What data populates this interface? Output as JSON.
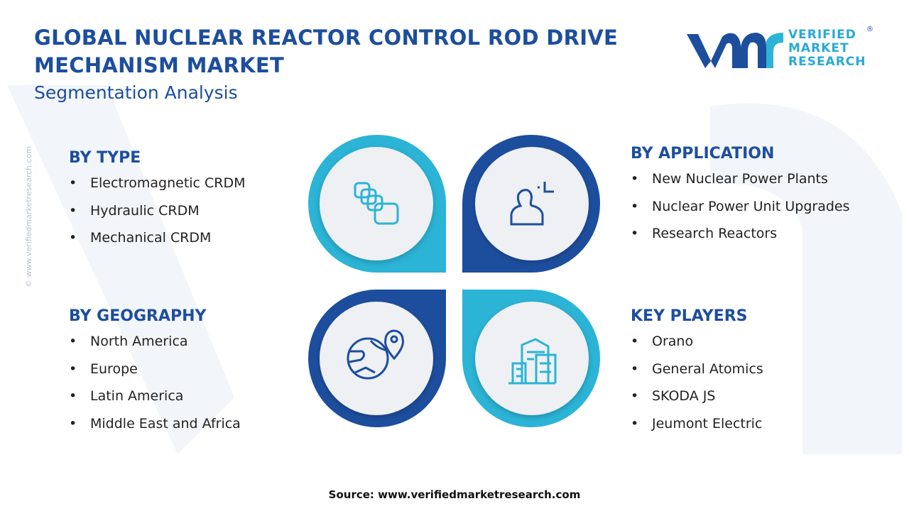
{
  "header": {
    "title_lines": [
      "GLOBAL NUCLEAR REACTOR CONTROL ROD DRIVE",
      "MECHANISM MARKET"
    ],
    "subtitle": "Segmentation Analysis"
  },
  "logo": {
    "lines": [
      "VERIFIED",
      "MARKET",
      "RESEARCH"
    ],
    "mark": "®"
  },
  "side_text": "© www.verifiedmarketresearch.com",
  "segments": [
    {
      "heading": "BY TYPE",
      "items": [
        "Electromagnetic CRDM",
        "Hydraulic CRDM",
        "Mechanical CRDM"
      ]
    },
    {
      "heading": "BY APPLICATION",
      "items": [
        "New Nuclear Power Plants",
        "Nuclear Power Unit Upgrades",
        "Research Reactors"
      ]
    },
    {
      "heading": "BY GEOGRAPHY",
      "items": [
        "North America",
        "Europe",
        "Latin America",
        "Middle East and Africa"
      ]
    },
    {
      "heading": "KEY PLAYERS",
      "items": [
        "Orano",
        "General Atomics",
        "SKODA JS",
        "Jeumont Electric"
      ]
    }
  ],
  "source": "Source: www.verifiedmarketresearch.com"
}
